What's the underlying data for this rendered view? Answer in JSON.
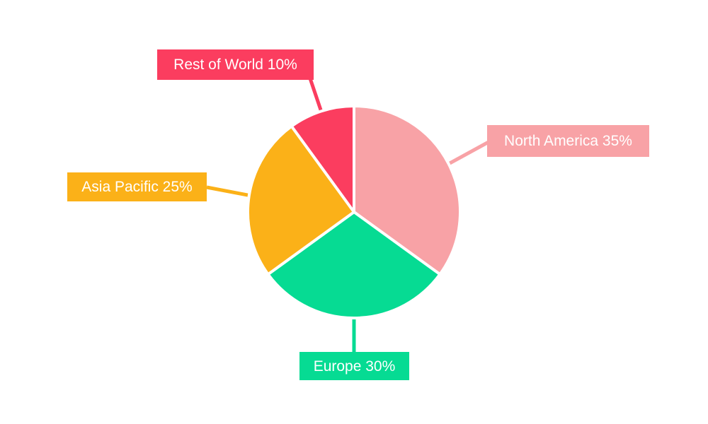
{
  "chart_data": {
    "type": "pie",
    "title": "",
    "direction": "clockwise",
    "start_angle_deg": 0,
    "background": "#ffffff",
    "label_text_color": "#ffffff",
    "slice_gap_color": "#ffffff",
    "slices": [
      {
        "name": "North America",
        "value": 35,
        "label": "North America 35%",
        "color": "#F8A2A6"
      },
      {
        "name": "Europe",
        "value": 30,
        "label": "Europe 30%",
        "color": "#06DB93"
      },
      {
        "name": "Asia Pacific",
        "value": 25,
        "label": "Asia Pacific 25%",
        "color": "#FBB118"
      },
      {
        "name": "Rest of World",
        "value": 10,
        "label": "Rest of World 10%",
        "color": "#FB3D5F"
      }
    ]
  }
}
